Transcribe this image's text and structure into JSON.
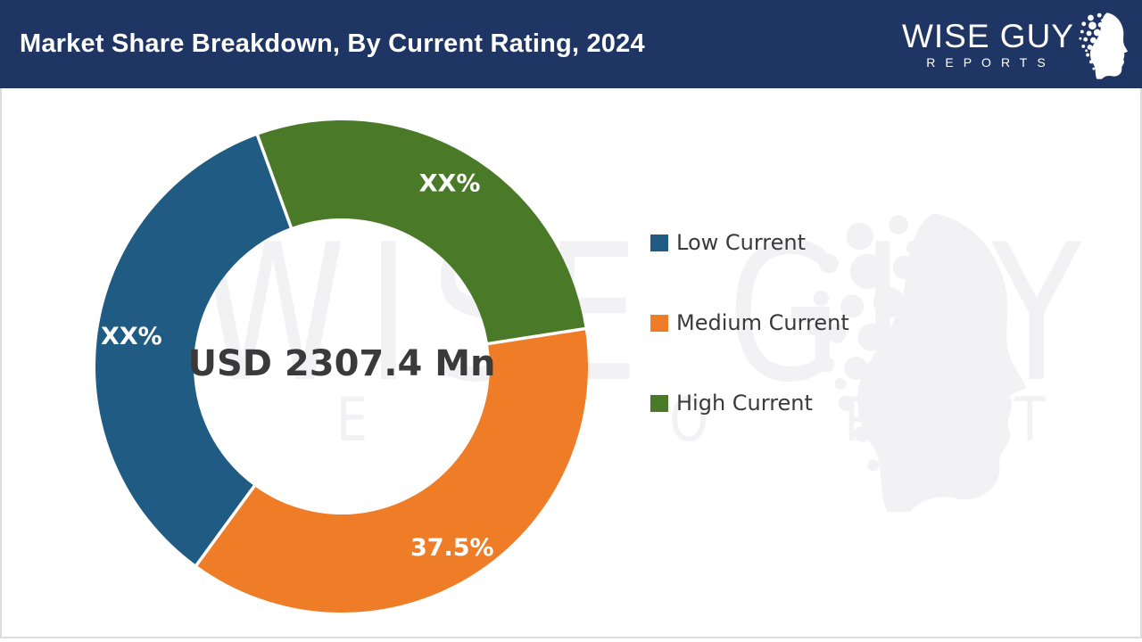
{
  "header": {
    "title": "Market Share Breakdown, By Current Rating, 2024",
    "bg_color": "#1f3664",
    "logo": {
      "name_line": "WISE GUY",
      "sub_line": "REPORTS"
    }
  },
  "watermark": {
    "name_line": "WISE GUY",
    "sub_line": "R E P O R T S"
  },
  "chart_data": {
    "type": "pie",
    "variant": "donut",
    "title": "Market Share Breakdown, By Current Rating, 2024",
    "center_label": "USD 2307.4 Mn",
    "start_angle_deg": 110,
    "direction": "counterclockwise",
    "inner_radius_ratio": 0.6,
    "legend_position": "right",
    "segments": [
      {
        "name": "Low Current",
        "label": "XX%",
        "value_pct": 34.4,
        "color": "#1f5b83"
      },
      {
        "name": "Medium Current",
        "label": "37.5%",
        "value_pct": 37.5,
        "color": "#ef7d28"
      },
      {
        "name": "High Current",
        "label": "XX%",
        "value_pct": 28.1,
        "color": "#4a7a28"
      }
    ]
  },
  "colors": {
    "header_bg": "#1f3664",
    "text_dark": "#3a3a3a",
    "watermark": "#f2f2f4",
    "separator": "#ffffff"
  }
}
